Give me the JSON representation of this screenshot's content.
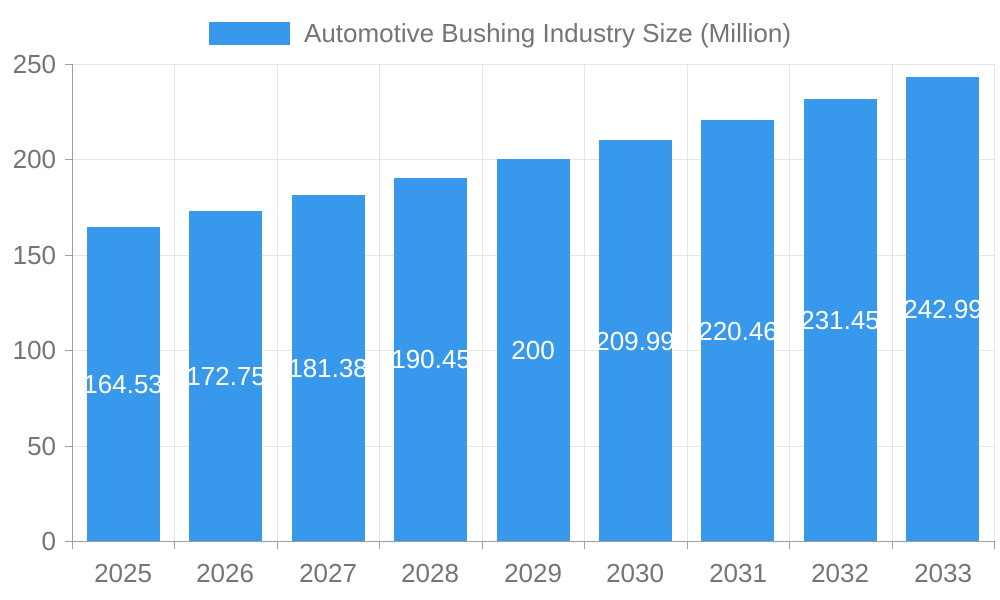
{
  "chart_data": {
    "type": "bar",
    "title": "Automotive Bushing Industry Size (Million)",
    "legend": "Automotive Bushing Industry Size (Million)",
    "legend_position": "top",
    "series": [
      {
        "name": "Automotive Bushing Industry Size (Million)",
        "values": [
          164.53,
          172.75,
          181.38,
          190.45,
          200,
          209.99,
          220.46,
          231.45,
          242.99
        ],
        "value_labels": [
          "164.53",
          "172.75",
          "181.38",
          "190.45",
          "200",
          "209.99",
          "220.46",
          "231.45",
          "242.99"
        ]
      }
    ],
    "categories": [
      "2025",
      "2026",
      "2027",
      "2028",
      "2029",
      "2030",
      "2031",
      "2032",
      "2033"
    ],
    "xlabel": "",
    "ylabel": "",
    "ylim": [
      0,
      250
    ],
    "yticks": [
      0,
      50,
      100,
      150,
      200,
      250
    ],
    "grid": true,
    "colors": {
      "bar": "#3899ec",
      "bar_label": "#ffffff",
      "axis_text": "#757575",
      "axis_line": "#9e9e9e",
      "gridline": "#e6e6e6",
      "background": "#ffffff"
    }
  }
}
